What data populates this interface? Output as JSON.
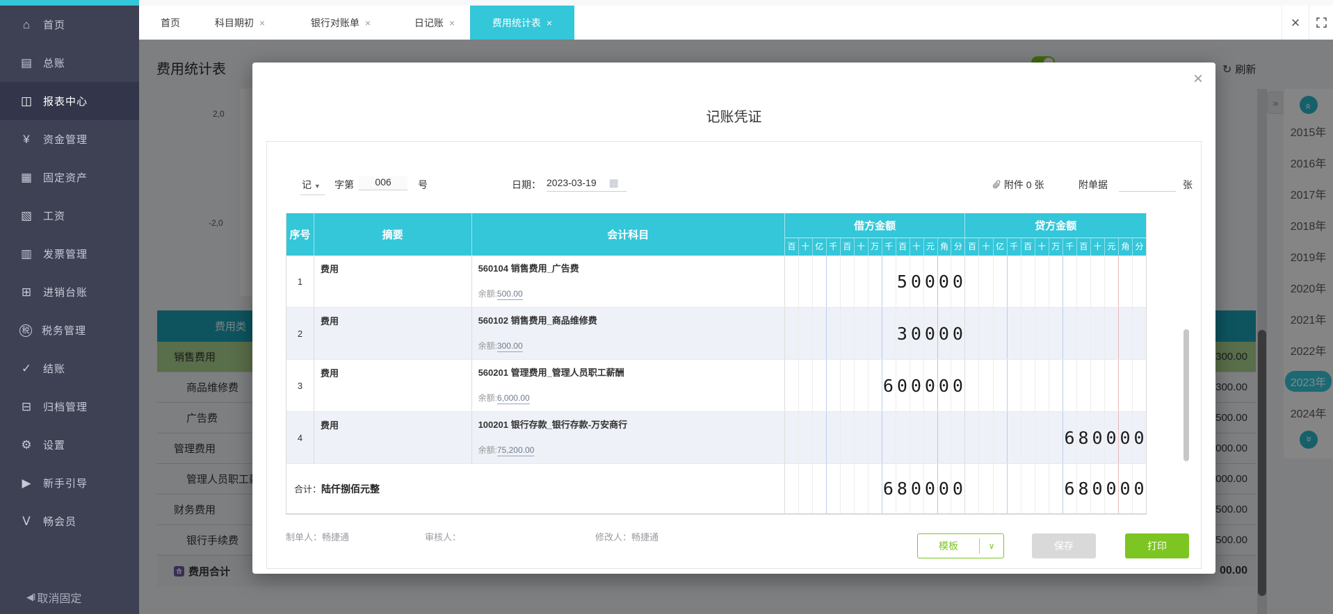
{
  "colors": {
    "accent": "#34c6d9",
    "green": "#7dc522",
    "teal_header": "#1a9fb3",
    "highlight_row": "#a8d08d",
    "sidebar": "#3e4154"
  },
  "app": {
    "tabs": [
      {
        "label": "首页",
        "closable": false,
        "active": false
      },
      {
        "label": "科目期初",
        "closable": true,
        "active": false
      },
      {
        "label": "银行对账单",
        "closable": true,
        "active": false
      },
      {
        "label": "日记账",
        "closable": true,
        "active": false
      },
      {
        "label": "费用统计表",
        "closable": true,
        "active": true
      }
    ],
    "window": {
      "close_glyph": "×"
    }
  },
  "sidebar": {
    "active_index": 2,
    "collapse_label": "取消固定",
    "items": [
      {
        "label": "首页",
        "icon": "home-icon",
        "glyph": "⌂"
      },
      {
        "label": "总账",
        "icon": "ledger-icon",
        "glyph": "▤"
      },
      {
        "label": "报表中心",
        "icon": "report-chart-icon",
        "glyph": "◫"
      },
      {
        "label": "资金管理",
        "icon": "money-bag-icon",
        "glyph": "¥"
      },
      {
        "label": "固定资产",
        "icon": "building-icon",
        "glyph": "▦"
      },
      {
        "label": "工资",
        "icon": "salary-card-icon",
        "glyph": "▧"
      },
      {
        "label": "发票管理",
        "icon": "invoice-icon",
        "glyph": "▥"
      },
      {
        "label": "进销台账",
        "icon": "inventory-ledger-icon",
        "glyph": "⊞"
      },
      {
        "label": "税务管理",
        "icon": "tax-icon",
        "glyph": "税"
      },
      {
        "label": "结账",
        "icon": "closing-icon",
        "glyph": "✓"
      },
      {
        "label": "归档管理",
        "icon": "archive-icon",
        "glyph": "⊟"
      },
      {
        "label": "设置",
        "icon": "gear-icon",
        "glyph": "⚙"
      },
      {
        "label": "新手引导",
        "icon": "guide-play-icon",
        "glyph": "▶"
      },
      {
        "label": "畅会员",
        "icon": "member-v-icon",
        "glyph": "Ⅴ"
      }
    ]
  },
  "page": {
    "title": "费用统计表",
    "refresh_label": "刷新",
    "chart_fragments": {
      "y_top": "2,0",
      "y_bottom": "-2,0"
    },
    "expense_table": {
      "header": "费用类",
      "rows": [
        {
          "label": "销售费用",
          "indent": false,
          "value": "300.00",
          "highlight": true,
          "bold": false,
          "icon": false
        },
        {
          "label": "商品维修费",
          "indent": true,
          "value": "300.00",
          "highlight": false,
          "bold": false,
          "icon": false
        },
        {
          "label": "广告费",
          "indent": true,
          "value": "500.00",
          "highlight": false,
          "bold": false,
          "icon": false
        },
        {
          "label": "管理费用",
          "indent": false,
          "value": "000.00",
          "highlight": false,
          "bold": false,
          "icon": false
        },
        {
          "label": "管理人员职工薪酬",
          "indent": true,
          "value": "000.00",
          "highlight": false,
          "bold": false,
          "icon": false
        },
        {
          "label": "财务费用",
          "indent": false,
          "value": "500.00",
          "highlight": false,
          "bold": false,
          "icon": false
        },
        {
          "label": "银行手续费",
          "indent": true,
          "value": "500.00",
          "highlight": false,
          "bold": false,
          "icon": false
        },
        {
          "label": "费用合计",
          "indent": false,
          "value": "00.00",
          "highlight": false,
          "bold": true,
          "icon": true
        }
      ]
    },
    "years": {
      "list": [
        "2015年",
        "2016年",
        "2017年",
        "2018年",
        "2019年",
        "2020年",
        "2021年",
        "2022年",
        "2023年",
        "2024年"
      ],
      "active": "2023年"
    }
  },
  "modal": {
    "title": "记账凭证",
    "voucher_no": {
      "prefix": "记",
      "zi_label": "字第",
      "number": "006",
      "hao_label": "号"
    },
    "date": {
      "label": "日期：",
      "value": "2023-03-19"
    },
    "attachment": {
      "label": "附件 0 张",
      "doc_label": "附单据",
      "unit": "张"
    },
    "table": {
      "headers": {
        "num": "序号",
        "summary": "摘要",
        "subject": "会计科目",
        "debit": "借方金额",
        "credit": "贷方金额"
      },
      "digit_units": [
        "百",
        "十",
        "亿",
        "千",
        "百",
        "十",
        "万",
        "千",
        "百",
        "十",
        "元",
        "角",
        "分"
      ],
      "rows": [
        {
          "num": "1",
          "summary": "费用",
          "subject": "560104 销售费用_广告费",
          "balance_label": "余额:",
          "balance": "500.00",
          "debit": "50000",
          "credit": ""
        },
        {
          "num": "2",
          "summary": "费用",
          "subject": "560102 销售费用_商品维修费",
          "balance_label": "余额:",
          "balance": "300.00",
          "debit": "30000",
          "credit": ""
        },
        {
          "num": "3",
          "summary": "费用",
          "subject": "560201 管理费用_管理人员职工薪酬",
          "balance_label": "余额:",
          "balance": "6,000.00",
          "debit": "600000",
          "credit": ""
        },
        {
          "num": "4",
          "summary": "费用",
          "subject": "100201 银行存款_银行存款-万安商行",
          "balance_label": "余额:",
          "balance": "75,200.00",
          "debit": "",
          "credit": "680000"
        }
      ],
      "total": {
        "label": "合计：",
        "amount_words": "陆仟捌佰元整",
        "debit": "680000",
        "credit": "680000"
      }
    },
    "footer": {
      "maker": "制单人：畅捷通",
      "auditor": "审核人：",
      "modifier": "修改人：畅捷通"
    },
    "buttons": {
      "template": "模板",
      "save": "保存",
      "print": "打印"
    }
  }
}
